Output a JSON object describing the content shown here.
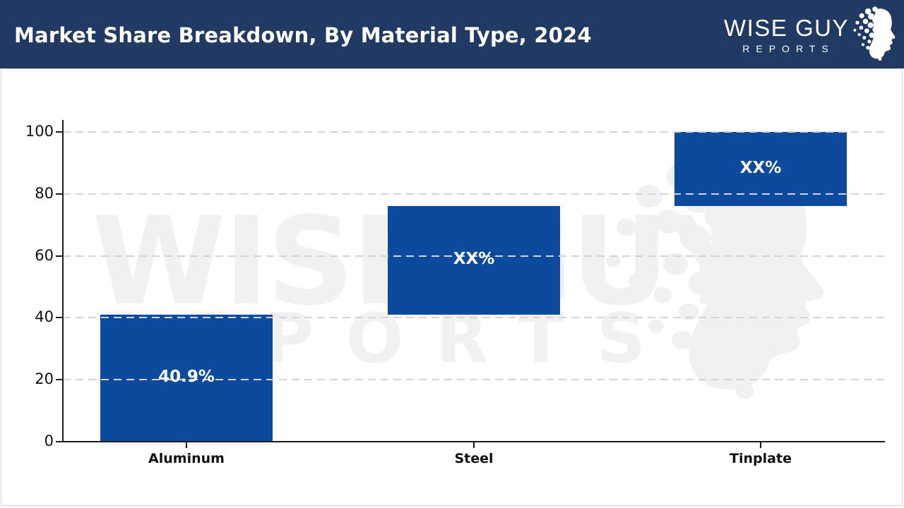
{
  "header": {
    "title": "Market Share Breakdown, By Material Type, 2024",
    "logo": {
      "line1": "WISE GUY",
      "line2": "REPORTS"
    }
  },
  "watermark": {
    "line1": "WISE GUY",
    "line2": "REPORTS"
  },
  "colors": {
    "header_bg": "#213A63",
    "bar": "#0B4A9C",
    "bar_label": "#FFFFFF",
    "watermark": "#F1F1F3",
    "grid": "#D4D4D4",
    "axis": "#1A1A1A",
    "tick_text": "#111111"
  },
  "chart_data": {
    "type": "bar",
    "variant": "waterfall",
    "title": "Market Share Breakdown, By Material Type, 2024",
    "categories": [
      "Aluminum",
      "Steel",
      "Tinplate"
    ],
    "segments": [
      {
        "category": "Aluminum",
        "from": 0,
        "to": 40.9,
        "label": "40.9%"
      },
      {
        "category": "Steel",
        "from": 40.9,
        "to": 76,
        "label": "XX%"
      },
      {
        "category": "Tinplate",
        "from": 76,
        "to": 100,
        "label": "XX%"
      }
    ],
    "xlabel": "",
    "ylabel": "",
    "ylim": [
      0,
      104
    ],
    "yticks": [
      0,
      20,
      40,
      60,
      80,
      100
    ],
    "grid": "dashed-horizontal",
    "legend": "none"
  }
}
